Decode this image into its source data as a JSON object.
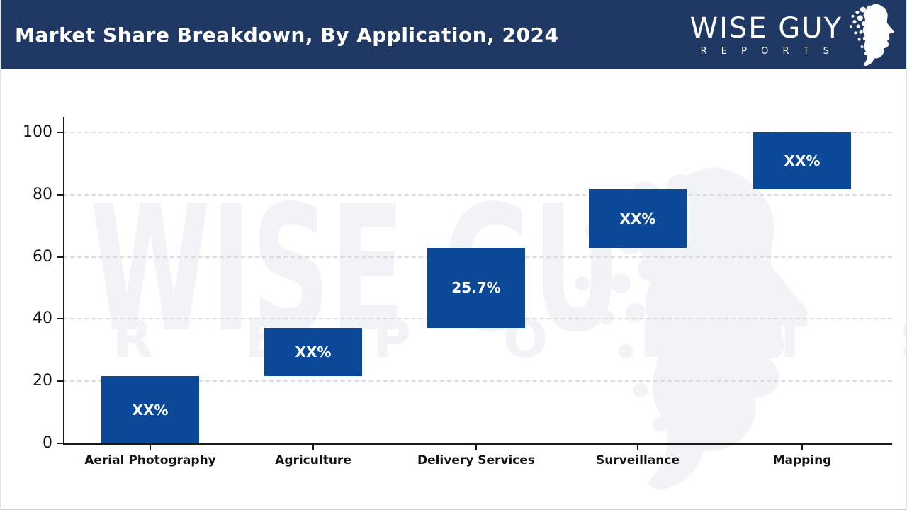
{
  "header": {
    "title": "Market Share Breakdown, By Application, 2024",
    "logo": {
      "line1": "WISE GUY",
      "line2": "R E P O R T S"
    }
  },
  "watermark": {
    "line1": "WISE GUY",
    "line2": "R E P O R T S"
  },
  "colors": {
    "header_bg": "#1f3864",
    "bar": "#0b4898",
    "bar_label": "#ffffff",
    "axis": "#1a1a1a",
    "grid": "#dcdcdc",
    "watermark": "#f2f3f6",
    "title_text": "#ffffff"
  },
  "chart_data": {
    "type": "bar",
    "subtype": "floating-segment-waterfall",
    "title": "Market Share Breakdown, By Application, 2024",
    "categories": [
      "Aerial Photography",
      "Agriculture",
      "Delivery Services",
      "Surveillance",
      "Mapping"
    ],
    "segments": [
      {
        "category": "Aerial Photography",
        "start": 0,
        "end": 21.6,
        "label": "XX%"
      },
      {
        "category": "Agriculture",
        "start": 21.6,
        "end": 37.2,
        "label": "XX%"
      },
      {
        "category": "Delivery Services",
        "start": 37.2,
        "end": 62.9,
        "label": "25.7%"
      },
      {
        "category": "Surveillance",
        "start": 62.9,
        "end": 81.7,
        "label": "XX%"
      },
      {
        "category": "Mapping",
        "start": 81.7,
        "end": 100,
        "label": "XX%"
      }
    ],
    "xlabel": "",
    "ylabel": "",
    "ylim": [
      0,
      100
    ],
    "yticks": [
      0,
      20,
      40,
      60,
      80,
      100
    ],
    "grid": "horizontal-dashed",
    "legend": "none"
  }
}
